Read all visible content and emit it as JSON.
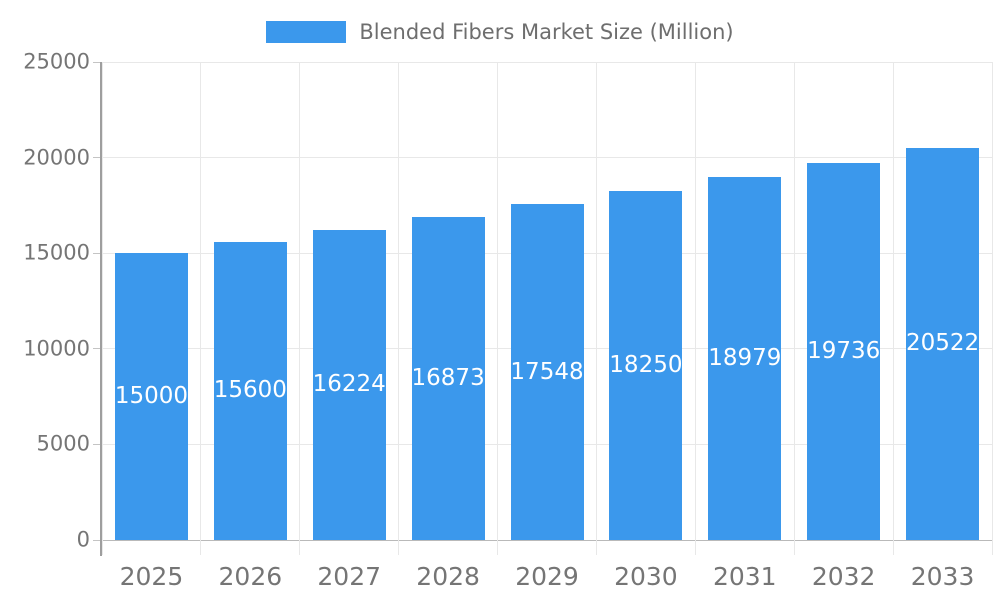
{
  "legend": {
    "label": "Blended Fibers Market Size (Million)"
  },
  "colors": {
    "bar": "#3b98ec",
    "grid": "#e8e8e8",
    "baseline": "#b9b9b9",
    "axis_line": "#9e9e9e",
    "tick_label": "#757575",
    "data_label": "#ffffff",
    "legend_text": "#6e6e6e",
    "background": "#ffffff"
  },
  "chart_data": {
    "type": "bar",
    "title": "Blended Fibers Market Size (Million)",
    "categories": [
      "2025",
      "2026",
      "2027",
      "2028",
      "2029",
      "2030",
      "2031",
      "2032",
      "2033"
    ],
    "values": [
      15000,
      15600,
      16224,
      16873,
      17548,
      18250,
      18979,
      19736,
      20522
    ],
    "series_name": "Blended Fibers Market Size (Million)",
    "xlabel": "",
    "ylabel": "",
    "ylim": [
      0,
      25000
    ],
    "y_ticks": [
      0,
      5000,
      10000,
      15000,
      20000,
      25000
    ],
    "grid": true,
    "legend_position": "top",
    "data_labels": "inside-center",
    "bar_fraction": 0.74
  }
}
